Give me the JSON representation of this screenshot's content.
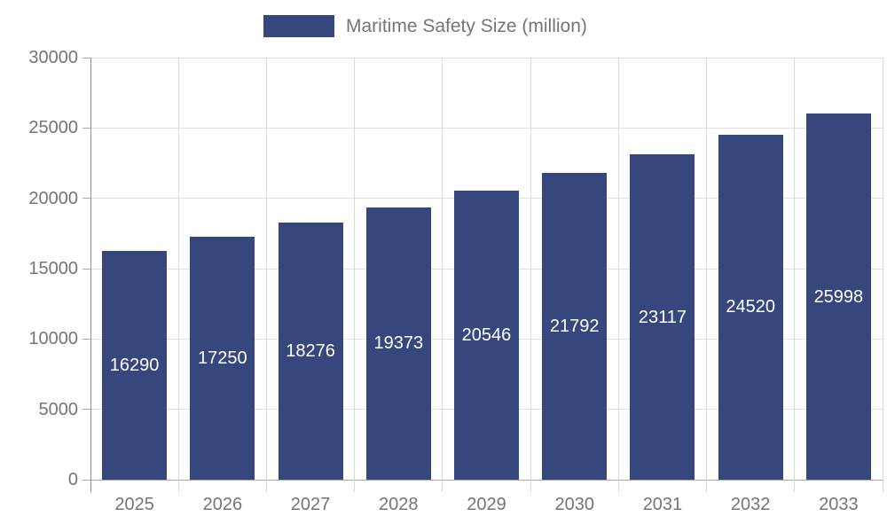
{
  "legend": {
    "label": "Maritime Safety Size (million)"
  },
  "colors": {
    "bar": "#35477d",
    "grid_h": "#e0e0e0",
    "grid_v": "#d9d9d9",
    "baseline": "#a9a9a9",
    "axis_line": "#8f8f8f",
    "tick_text": "#757575",
    "value_label_text": "#ffffff",
    "background": "#ffffff"
  },
  "chart_data": {
    "type": "bar",
    "title": "Maritime Safety Size (million)",
    "categories": [
      "2025",
      "2026",
      "2027",
      "2028",
      "2029",
      "2030",
      "2031",
      "2032",
      "2033"
    ],
    "values": [
      16290,
      17250,
      18276,
      19373,
      20546,
      21792,
      23117,
      24520,
      25998
    ],
    "xlabel": "",
    "ylabel": "",
    "ylim": [
      0,
      30000
    ],
    "yticks": [
      0,
      5000,
      10000,
      15000,
      20000,
      25000,
      30000
    ],
    "grid": true,
    "legend_position": "top-center",
    "value_labels": "inside-middle"
  }
}
